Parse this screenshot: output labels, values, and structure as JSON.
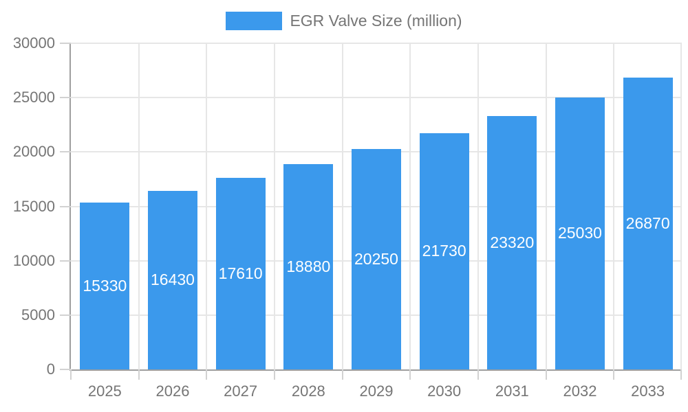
{
  "legend": {
    "label": "EGR Valve Size (million)"
  },
  "chart_data": {
    "type": "bar",
    "title": "EGR Valve Size (million)",
    "series_name": "EGR Valve Size (million)",
    "categories": [
      "2025",
      "2026",
      "2027",
      "2028",
      "2029",
      "2030",
      "2031",
      "2032",
      "2033"
    ],
    "values": [
      15330,
      16430,
      17610,
      18880,
      20250,
      21730,
      23320,
      25030,
      26870
    ],
    "xlabel": "",
    "ylabel": "",
    "ylim": [
      0,
      30000
    ],
    "yticks": [
      0,
      5000,
      10000,
      15000,
      20000,
      25000,
      30000
    ],
    "grid": true,
    "legend_position": "top",
    "value_labels_inside_bars": true,
    "colors": {
      "bar": "#3B99EC",
      "bar_label_text": "#FFFFFF",
      "axis_line": "#9E9E9E",
      "grid_line": "#E6E6E6",
      "tick_mark": "#D2D2D2",
      "axis_text": "#757575",
      "legend_text": "#757575",
      "background": "#FFFFFF"
    }
  }
}
